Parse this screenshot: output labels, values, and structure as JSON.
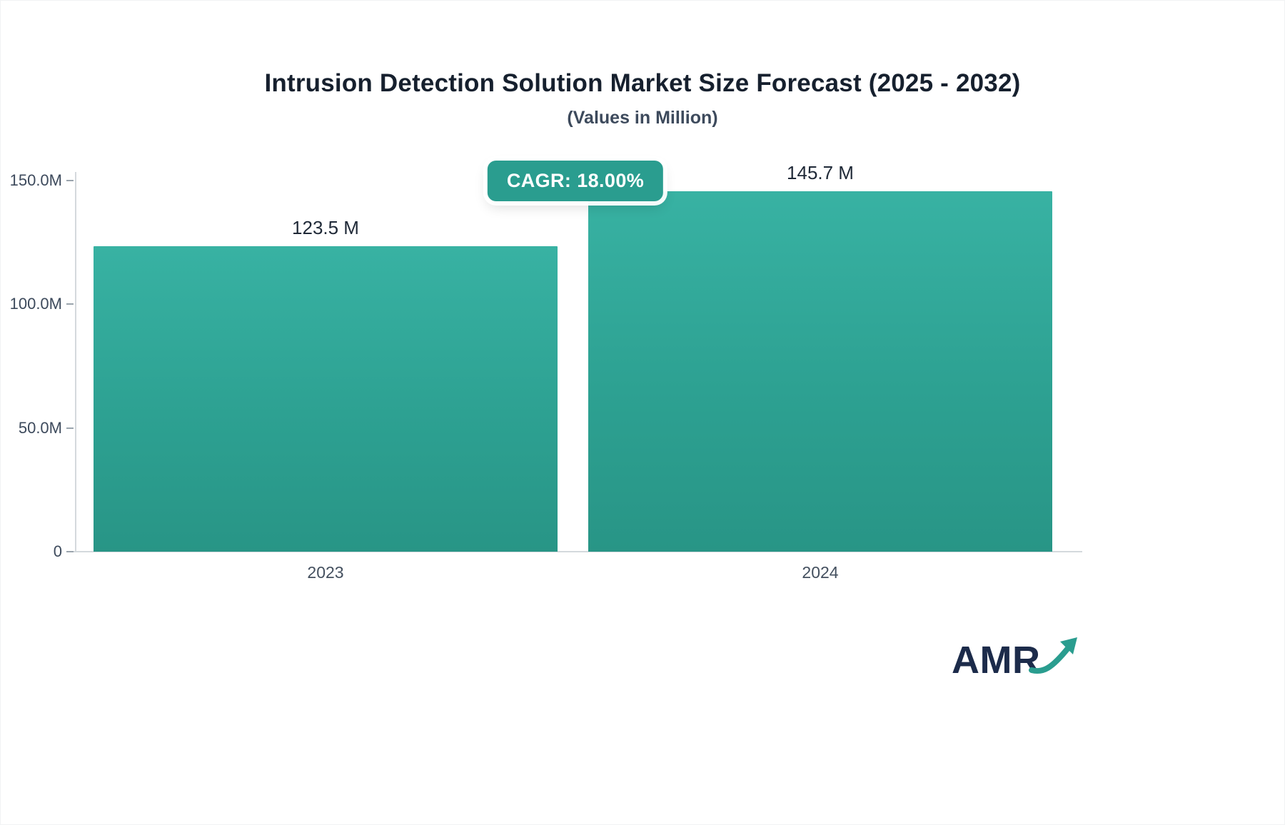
{
  "title": "Intrusion Detection Solution Market Size Forecast (2025 - 2032)",
  "subtitle": "(Values in Million)",
  "cagr_badge": "CAGR: 18.00%",
  "logo": {
    "text": "AMR"
  },
  "colors": {
    "bar_teal_top": "#38b2a3",
    "bar_teal_bottom": "#289586",
    "badge_bg": "#2a9d8f",
    "logo_navy": "#1c2b4a",
    "arrow_teal": "#2a9d8f",
    "axis_gray": "#d4d9dd"
  },
  "chart_data": {
    "type": "bar",
    "title": "Intrusion Detection Solution Market Size Forecast (2025 - 2032)",
    "subtitle": "(Values in Million)",
    "categories": [
      "2023",
      "2024"
    ],
    "values": [
      123.5,
      145.7
    ],
    "value_labels": [
      "123.5 M",
      "145.7 M"
    ],
    "unit": "Million",
    "xlabel": "",
    "ylabel": "",
    "ylim": [
      0,
      150
    ],
    "yticks": [
      {
        "value": 150,
        "label": "150.0M"
      },
      {
        "value": 100,
        "label": "100.0M"
      },
      {
        "value": 50,
        "label": "50.0M"
      },
      {
        "value": 0,
        "label": "0"
      }
    ],
    "grid": false,
    "legend": "none",
    "annotation": "CAGR: 18.00%"
  }
}
